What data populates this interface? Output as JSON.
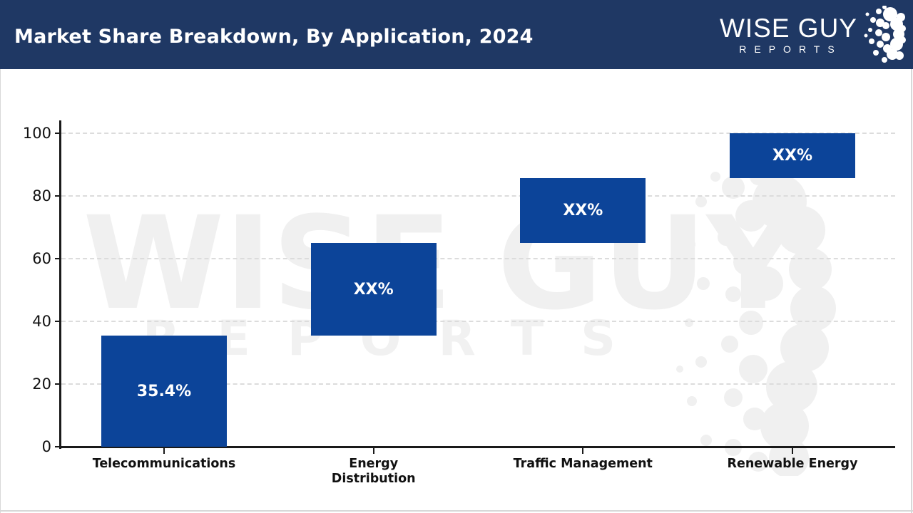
{
  "header": {
    "title": "Market Share Breakdown, By Application, 2024",
    "bg_color": "#1f3864",
    "logo": {
      "wordmark": "WISE GUY",
      "subtext": "REPORTS"
    }
  },
  "watermark": {
    "line1": "WISE GUY",
    "line2": "REPORTS",
    "color": "#f0f0f0"
  },
  "chart_data": {
    "type": "bar",
    "subtype": "floating-waterfall",
    "title": "Market Share Breakdown, By Application, 2024",
    "categories": [
      "Telecommunications",
      "Energy\nDistribution",
      "Traffic Management",
      "Renewable Energy"
    ],
    "bars": [
      {
        "category": "Telecommunications",
        "start": 0,
        "end": 35.4,
        "value": 35.4,
        "label": "35.4%"
      },
      {
        "category": "Energy Distribution",
        "start": 35.4,
        "end": 65,
        "value": 29.6,
        "label": "XX%"
      },
      {
        "category": "Traffic Management",
        "start": 65,
        "end": 85.7,
        "value": 20.7,
        "label": "XX%"
      },
      {
        "category": "Renewable Energy",
        "start": 85.7,
        "end": 100,
        "value": 14.3,
        "label": "XX%"
      }
    ],
    "ylim": [
      0,
      100
    ],
    "yticks": [
      0,
      20,
      40,
      60,
      80,
      100
    ],
    "xlabel": "",
    "ylabel": "",
    "grid": "horizontal-dashed",
    "legend": false,
    "bar_color": "#0c4499",
    "bar_label_color": "#ffffff",
    "axis_color": "#1a1a1a"
  }
}
